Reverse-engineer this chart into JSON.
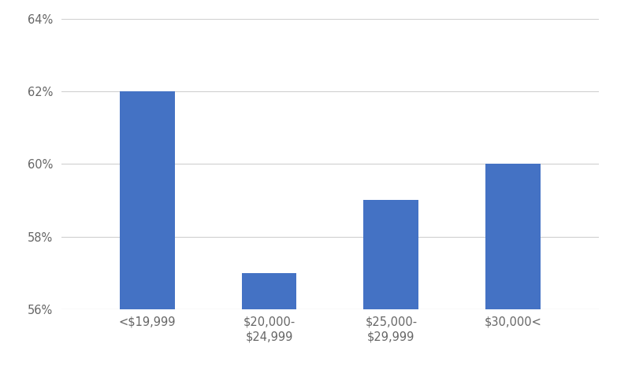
{
  "categories": [
    "<$19,999",
    "$20,000-\n$24,999",
    "$25,000-\n$29,999",
    "$30,000<"
  ],
  "values": [
    62,
    57,
    59,
    60
  ],
  "bar_color": "#4472c4",
  "ylim": [
    56,
    64
  ],
  "yticks": [
    56,
    58,
    60,
    62,
    64
  ],
  "background_color": "#ffffff",
  "grid_color": "#d0d0d0",
  "tick_label_color": "#666666",
  "bar_width": 0.45,
  "figsize": [
    7.83,
    4.79
  ],
  "dpi": 100
}
